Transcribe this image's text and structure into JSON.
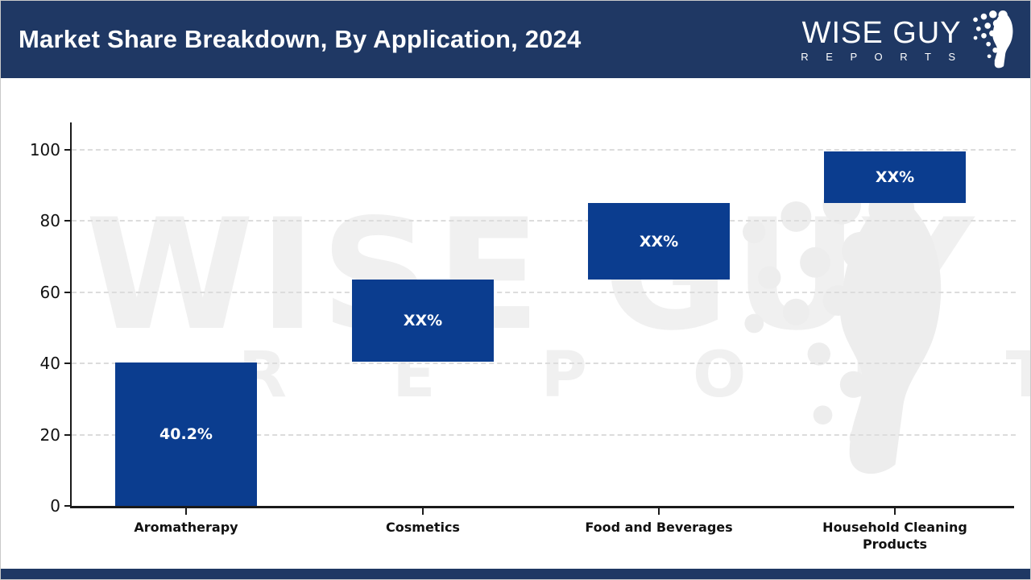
{
  "header": {
    "title": "Market Share Breakdown, By Application, 2024",
    "logo": {
      "line1": "WISE GUY",
      "line2": "R E P O R T S"
    }
  },
  "watermark": {
    "line1": "WISE GUY",
    "line2": "R E P O R T S"
  },
  "colors": {
    "header_bg": "#1f3864",
    "footer_bg": "#1f3864",
    "bar": "#0b3d8f",
    "grid": "#dcdcdc",
    "axis": "#1a1a1a",
    "text": "#111111",
    "bar_label": "#ffffff",
    "watermark": "#f0f0f0"
  },
  "chart_data": {
    "type": "bar",
    "subtype": "floating-segment-breakdown",
    "title": "Market Share Breakdown, By Application, 2024",
    "categories": [
      "Aromatherapy",
      "Cosmetics",
      "Food and Beverages",
      "Household Cleaning Products"
    ],
    "segments": [
      {
        "category": "Aromatherapy",
        "start": 0,
        "end": 40.2,
        "label": "40.2%"
      },
      {
        "category": "Cosmetics",
        "start": 40.5,
        "end": 63.5,
        "label": "XX%"
      },
      {
        "category": "Food and Beverages",
        "start": 63.5,
        "end": 85,
        "label": "XX%"
      },
      {
        "category": "Household Cleaning Products",
        "start": 85,
        "end": 99.5,
        "label": "XX%"
      }
    ],
    "ylim": [
      0,
      100
    ],
    "yticks": [
      0,
      20,
      40,
      60,
      80,
      100
    ],
    "xlabel": "",
    "ylabel": "",
    "grid": "dashed-horizontal",
    "legend": "none"
  }
}
